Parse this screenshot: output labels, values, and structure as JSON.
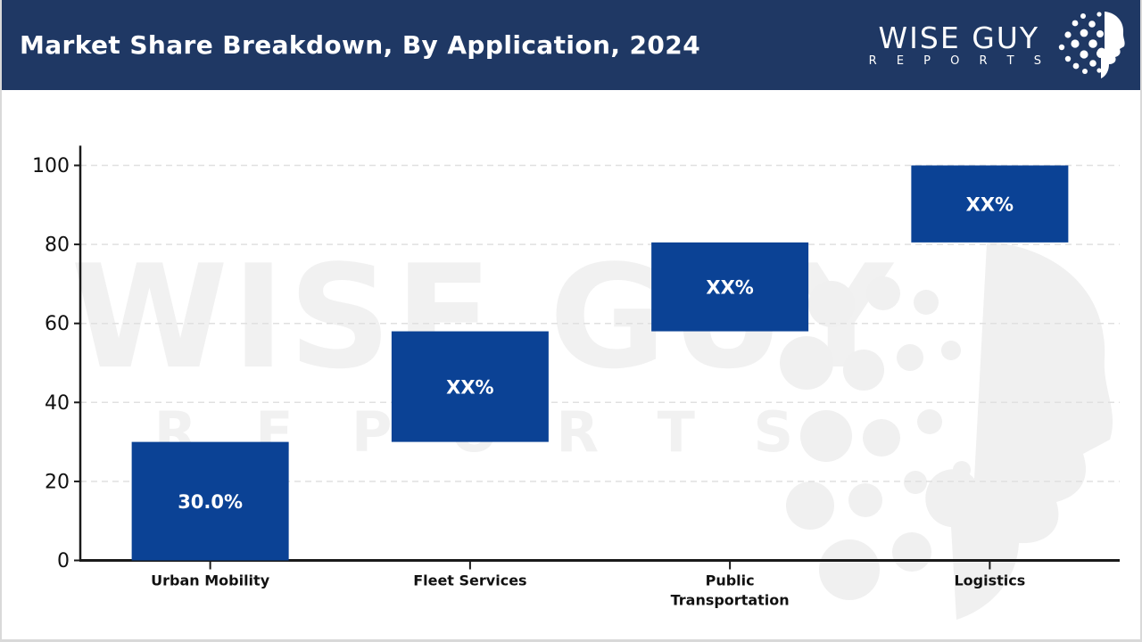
{
  "header": {
    "title": "Market Share Breakdown, By Application, 2024",
    "logo": {
      "wordmark": "WISE GUY",
      "subtitle": "R E P O R T S"
    }
  },
  "watermark": {
    "line1": "WISE GUY",
    "line2": "R E P O R T S"
  },
  "chart_data": {
    "type": "bar",
    "subtype": "waterfall",
    "title": "Market Share Breakdown, By Application, 2024",
    "categories": [
      "Urban Mobility",
      "Fleet Services",
      "Public Transportation",
      "Logistics"
    ],
    "segments": [
      {
        "category": "Urban Mobility",
        "start": 0,
        "end": 30,
        "label": "30.0%",
        "label_lines": [
          "Urban Mobility"
        ]
      },
      {
        "category": "Fleet Services",
        "start": 30,
        "end": 58,
        "label": "XX%",
        "label_lines": [
          "Fleet Services"
        ]
      },
      {
        "category": "Public Transportation",
        "start": 58,
        "end": 80.5,
        "label": "XX%",
        "label_lines": [
          "Public",
          "Transportation"
        ]
      },
      {
        "category": "Logistics",
        "start": 80.5,
        "end": 100,
        "label": "XX%",
        "label_lines": [
          "Logistics"
        ]
      }
    ],
    "yticks": [
      0,
      20,
      40,
      60,
      80,
      100
    ],
    "ylim": [
      0,
      105
    ],
    "xlabel": "",
    "ylabel": "",
    "legend": "none",
    "grid": {
      "show": true,
      "orientation": "horizontal",
      "style": "dashed",
      "color": "#e0e0e0"
    },
    "bar_color": "#0b4295",
    "value_label_color": "#ffffff",
    "axis_color": "#1a1a1a",
    "tick_label_color": "#111111"
  }
}
